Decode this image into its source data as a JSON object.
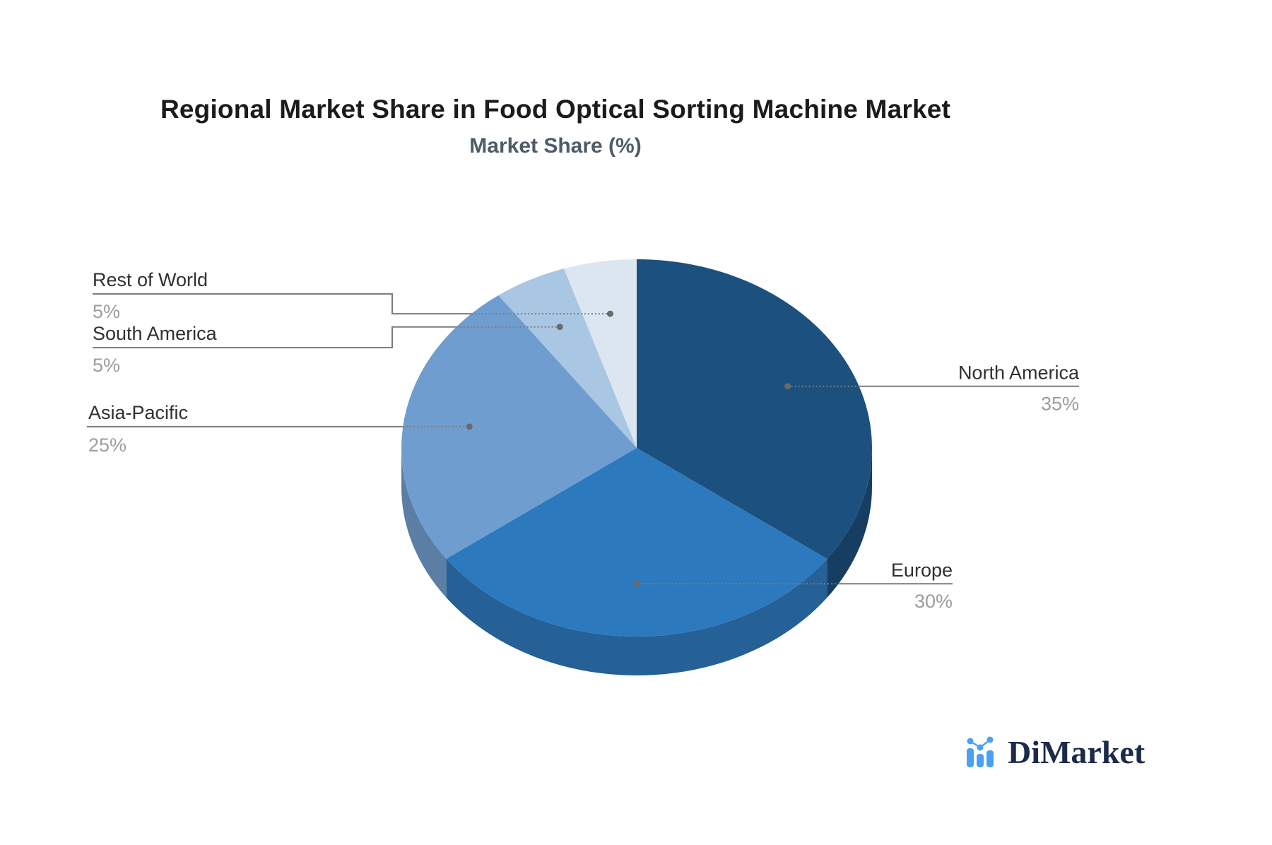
{
  "header": {
    "title": "Regional Market Share in Food Optical Sorting Machine Market",
    "subtitle": "Market Share (%)"
  },
  "chart_data": {
    "type": "pie",
    "title": "Regional Market Share in Food Optical Sorting Machine Market",
    "subtitle": "Market Share (%)",
    "unit": "%",
    "style": "3d-depth-pie",
    "start_at": "12-oclock-clockwise",
    "legend_position": "callout-labels",
    "slices": [
      {
        "label": "North America",
        "value": 35,
        "pct_label": "35%",
        "color": "#1C507E",
        "side_color": "#163E63"
      },
      {
        "label": "Europe",
        "value": 30,
        "pct_label": "30%",
        "color": "#2D79BD",
        "side_color": "#256096"
      },
      {
        "label": "Asia-Pacific",
        "value": 25,
        "pct_label": "25%",
        "color": "#6F9DD0",
        "side_color": "#5A7EA4"
      },
      {
        "label": "South America",
        "value": 5,
        "pct_label": "5%",
        "color": "#A9C6E3",
        "side_color": "#8FB0D2"
      },
      {
        "label": "Rest of World",
        "value": 5,
        "pct_label": "5%",
        "color": "#DCE6F1",
        "side_color": "#C3D2E2"
      }
    ],
    "colors": {
      "label_text": "#303030",
      "pct_text": "#9d9d9d",
      "leader_line": "#7c7c7c",
      "leader_dot": "#6a6a6a"
    }
  },
  "branding": {
    "logo_text": "DiMarket",
    "logo_icon": "bar-line-chart-icon",
    "logo_accent": "#4aa0f2"
  }
}
